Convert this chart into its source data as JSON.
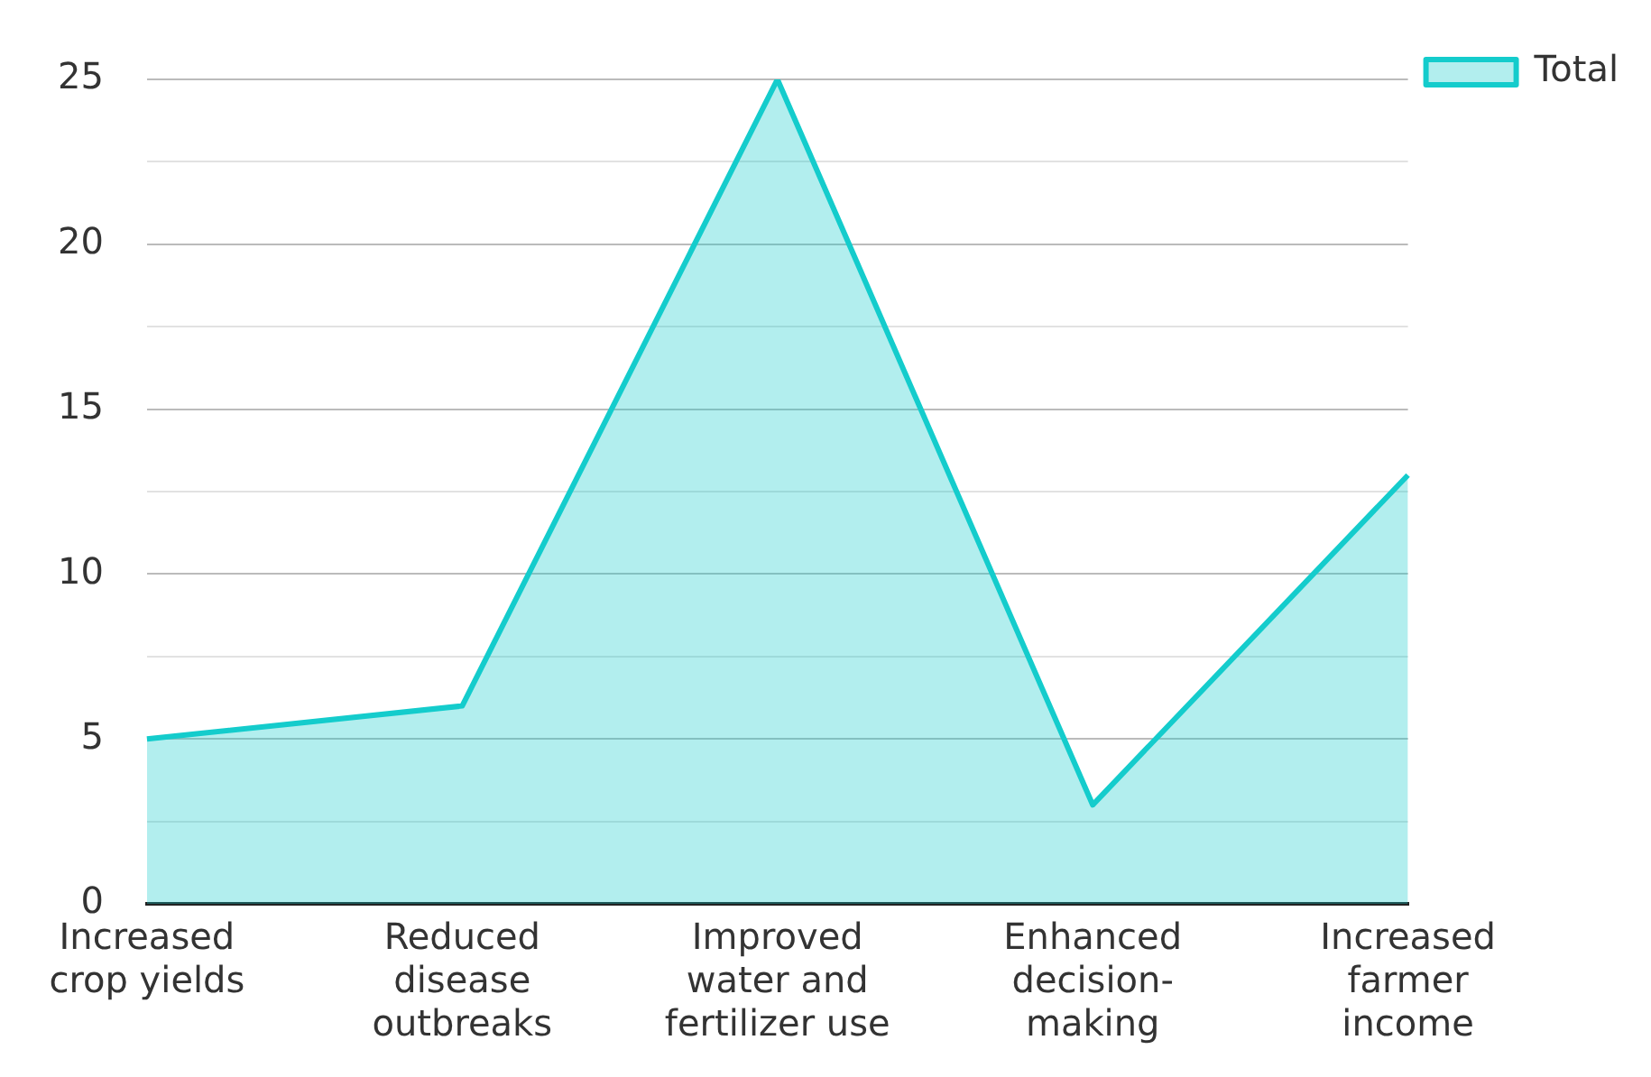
{
  "chart_data": {
    "type": "area",
    "categories": [
      "Increased crop yields",
      "Reduced disease outbreaks",
      "Improved water and fertilizer use",
      "Enhanced decision-making",
      "Increased farmer income"
    ],
    "series": [
      {
        "name": "Total",
        "color": "#14cccc",
        "values": [
          5,
          6,
          25,
          3,
          13
        ]
      }
    ],
    "ylim": [
      0,
      25
    ],
    "yticks": [
      0,
      {
        "value": 2.5,
        "label": null
      },
      5,
      {
        "value": 7.5,
        "label": null
      },
      10,
      {
        "value": 12.5,
        "label": null
      },
      15,
      {
        "value": 17.5,
        "label": null
      },
      20,
      {
        "value": 22.5,
        "label": null
      },
      25
    ],
    "grid": "y",
    "legend": "top right",
    "marker": "none",
    "line_style": "solid"
  }
}
